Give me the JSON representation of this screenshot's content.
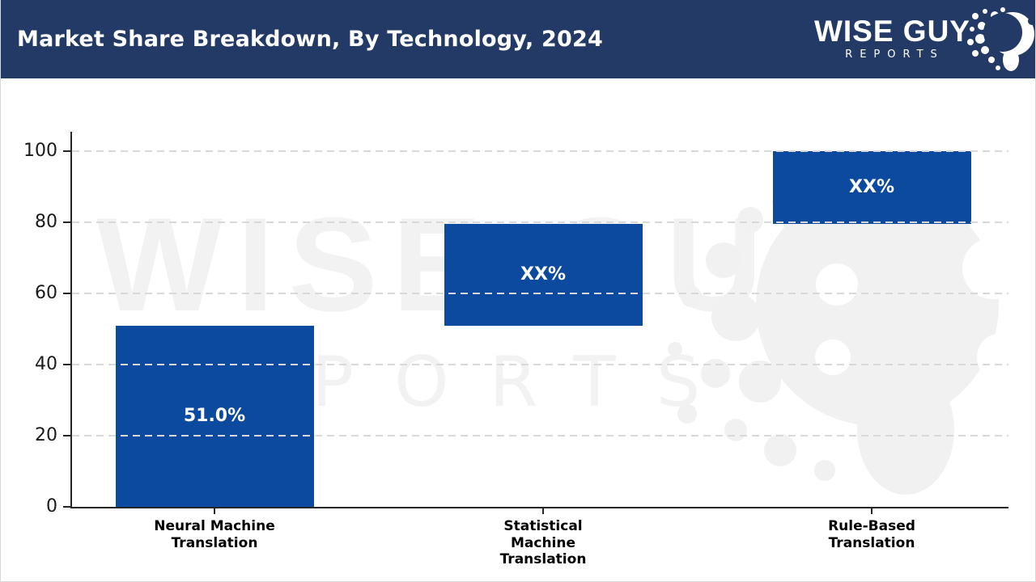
{
  "header": {
    "title": "Market Share Breakdown, By Technology, 2024",
    "bg_color": "#243a66",
    "logo": {
      "name": "WISE GUY",
      "sub": "REPORTS"
    }
  },
  "watermark": {
    "name": "WISE GUY",
    "sub": "REPORTS"
  },
  "chart_data": {
    "type": "bar",
    "subtype": "waterfall",
    "title": "Market Share Breakdown, By Technology, 2024",
    "categories": [
      "Neural Machine\nTranslation",
      "Statistical\nMachine\nTranslation",
      "Rule-Based\nTranslation"
    ],
    "series": [
      {
        "name": "Neural Machine Translation",
        "start": 0,
        "end": 51.0,
        "value": 51.0,
        "label": "51.0%"
      },
      {
        "name": "Statistical Machine Translation",
        "start": 51.0,
        "end": 79.5,
        "value": 28.5,
        "label": "XX%"
      },
      {
        "name": "Rule-Based Translation",
        "start": 79.5,
        "end": 100.0,
        "value": 20.5,
        "label": "XX%"
      }
    ],
    "xlabel": "",
    "ylabel": "",
    "yticks": [
      0,
      20,
      40,
      60,
      80,
      100
    ],
    "ylim": [
      0,
      104
    ],
    "grid": true,
    "grid_style": "dashed",
    "legend_position": "none",
    "bar_color": "#0b4a9e",
    "bar_label_color": "#ffffff",
    "grid_color": "#d9d9d9",
    "axis_color": "#262626"
  }
}
